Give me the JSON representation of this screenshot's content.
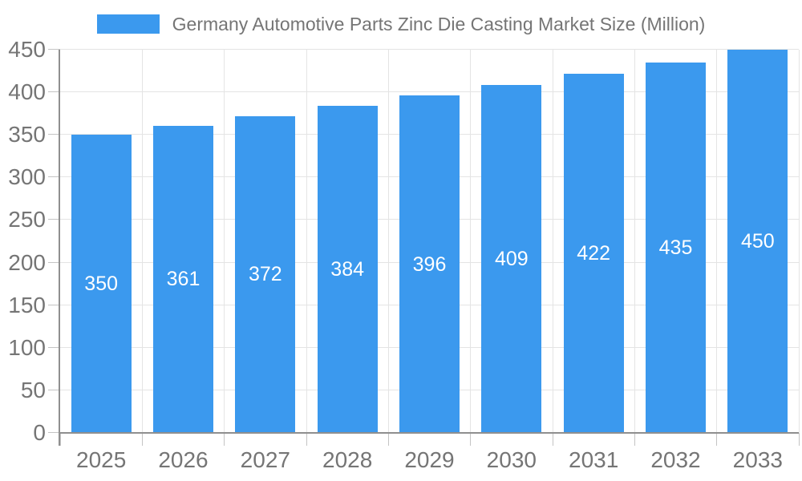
{
  "chart_data": {
    "type": "bar",
    "title": "Germany Automotive Parts Zinc Die Casting Market Size (Million)",
    "categories": [
      "2025",
      "2026",
      "2027",
      "2028",
      "2029",
      "2030",
      "2031",
      "2032",
      "2033"
    ],
    "values": [
      350,
      361,
      372,
      384,
      396,
      409,
      422,
      435,
      450
    ],
    "yticks": [
      0,
      50,
      100,
      150,
      200,
      250,
      300,
      350,
      400,
      450
    ],
    "ylim": [
      0,
      450
    ],
    "grid": true,
    "legend_position": "top",
    "colors": {
      "bar": "#3B99EE",
      "value_label": "#FFFFFF",
      "axis_text": "#757575",
      "axis_line": "#8F8F8F",
      "tick_mark": "#C4C4C4",
      "grid_line": "#E4E4E4"
    }
  }
}
